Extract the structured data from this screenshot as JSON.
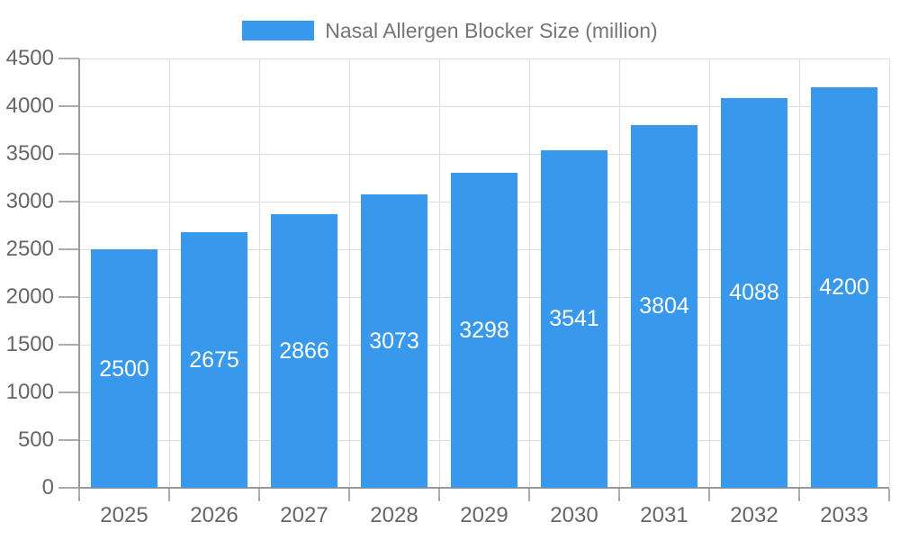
{
  "legend": {
    "label": "Nasal Allergen Blocker Size (million)"
  },
  "chart_data": {
    "type": "bar",
    "title": "",
    "xlabel": "",
    "ylabel": "",
    "categories": [
      "2025",
      "2026",
      "2027",
      "2028",
      "2029",
      "2030",
      "2031",
      "2032",
      "2033"
    ],
    "series": [
      {
        "name": "Nasal Allergen Blocker Size (million)",
        "values": [
          2500,
          2675,
          2866,
          3073,
          3298,
          3541,
          3804,
          4088,
          4200
        ]
      }
    ],
    "value_labels": [
      "2500",
      "2675",
      "2866",
      "3073",
      "3298",
      "3541",
      "3804",
      "4088",
      "4200"
    ],
    "ylim": [
      0,
      4500
    ],
    "ytick_step": 500,
    "ytick_labels": [
      "0",
      "500",
      "1000",
      "1500",
      "2000",
      "2500",
      "3000",
      "3500",
      "4000",
      "4500"
    ],
    "grid": true,
    "legend_position": "top",
    "value_label_position": "bar-center"
  },
  "colors": {
    "bar": "#3899EC",
    "axis": "#999999",
    "tick": "#ababab",
    "grid": "#dedede",
    "axis_label_text": "#666666",
    "legend_text": "#757575",
    "bar_label_text": "#ffffff",
    "background": "#ffffff"
  }
}
